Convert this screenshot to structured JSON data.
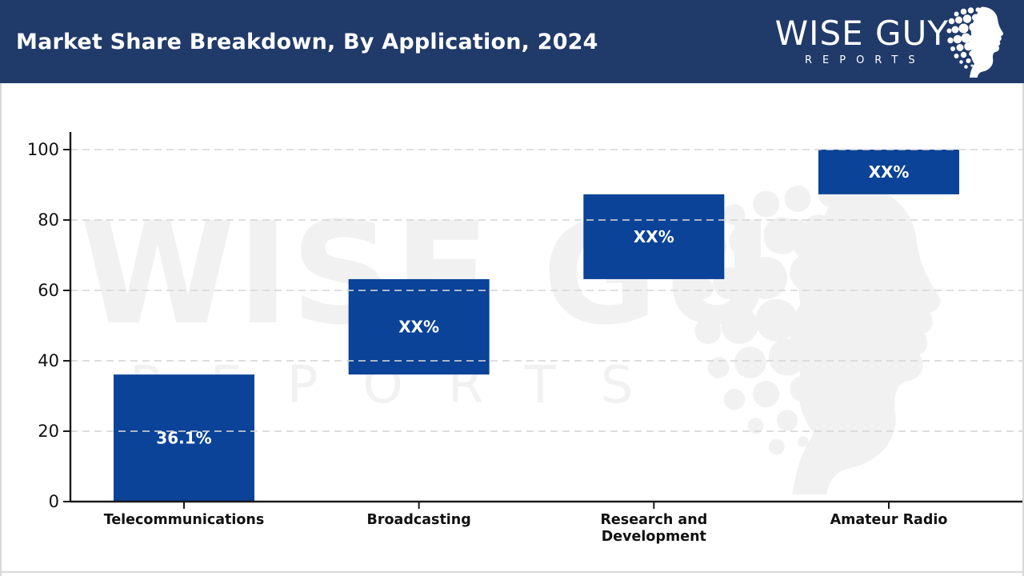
{
  "header": {
    "title": "Market Share Breakdown, By Application, 2024",
    "logo": {
      "line1": "WISE GUY",
      "line2": "REPORTS"
    }
  },
  "watermark": {
    "line1": "WISE GUY",
    "line2": "REPORTS"
  },
  "colors": {
    "header_bg": "#203a69",
    "bar": "#0a4397",
    "grid": "#d6d6d6",
    "axis": "#1a1a1a",
    "tick_text": "#111111",
    "bar_label": "#ffffff",
    "watermark": "#f1f1f1"
  },
  "chart_data": {
    "type": "bar",
    "variant": "waterfall",
    "title": "Market Share Breakdown, By Application, 2024",
    "categories": [
      "Telecommunications",
      "Broadcasting",
      "Research and\nDevelopment",
      "Amateur Radio"
    ],
    "series": [
      {
        "name": "Market share (%)",
        "segment_start": [
          0,
          36.1,
          63.2,
          87.3
        ],
        "segment_end": [
          36.1,
          63.2,
          87.3,
          100
        ]
      }
    ],
    "bar_labels": [
      "36.1%",
      "XX%",
      "XX%",
      "XX%"
    ],
    "xlabel": "",
    "ylabel": "",
    "yticks": [
      0,
      20,
      40,
      60,
      80,
      100
    ],
    "ylim": [
      0,
      105
    ],
    "grid": "horizontal-dashed",
    "legend": false
  }
}
